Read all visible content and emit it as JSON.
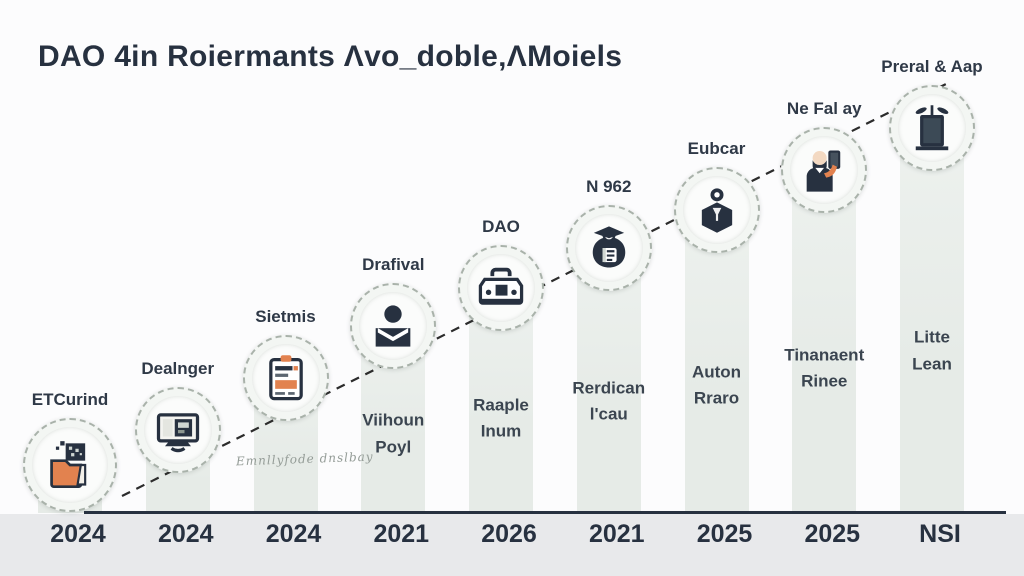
{
  "title": "DAO 4in Roiermants Λvo_doble‚ΛMoiels",
  "annotation": "Emnllyfode dnslbay",
  "colors": {
    "ink": "#273140",
    "accent": "#e2824f",
    "bar": "#e6ebe7",
    "strip": "#e8e9eb",
    "ring": "#a9b2aa",
    "circlefill": "#f3f6f3",
    "bg": "#fcfcfd",
    "trend": "#2c2c2c"
  },
  "milestones": [
    {
      "year": "2024",
      "label": "ETCurind",
      "sublabel_lines": [],
      "icon": "pixel-folder-icon"
    },
    {
      "year": "2024",
      "label": "Dealnger",
      "sublabel_lines": [],
      "icon": "monitor-icon"
    },
    {
      "year": "2024",
      "label": "Sietmis",
      "sublabel_lines": [],
      "icon": "clipboard-icon"
    },
    {
      "year": "2021",
      "label": "Drafival",
      "sublabel_lines": [
        "Viihoun",
        "Poyl"
      ],
      "icon": "person-reading-icon"
    },
    {
      "year": "2026",
      "label": "DAO",
      "sublabel_lines": [
        "Raaple",
        "Inum"
      ],
      "icon": "briefcase-icon"
    },
    {
      "year": "2021",
      "label": "N 962",
      "sublabel_lines": [
        "Rerdican",
        "l'cau"
      ],
      "icon": "graduate-book-icon"
    },
    {
      "year": "2025",
      "label": "Eubcar",
      "sublabel_lines": [
        "Auton",
        "Rraro"
      ],
      "icon": "person-cube-icon"
    },
    {
      "year": "2025",
      "label": "Ne Fal ay",
      "sublabel_lines": [
        "Tinanaent",
        "Rinee"
      ],
      "icon": "person-tablet-icon"
    },
    {
      "year": "NSI",
      "label": "Preral & Aap",
      "sublabel_lines": [
        "Litte",
        "Lean"
      ],
      "icon": "door-sprout-icon"
    }
  ],
  "chart_data": {
    "type": "bar",
    "title": "DAO 4in Roiermants Λvo_doble‚ΛMoiels",
    "categories": [
      "2024",
      "2024",
      "2024",
      "2021",
      "2026",
      "2021",
      "2025",
      "2025",
      "NSI"
    ],
    "values": [
      48,
      83,
      135,
      187,
      225,
      265,
      303,
      343,
      385
    ],
    "values_unit": "estimated_bar_height_px",
    "point_labels": [
      "ETCurind",
      "Dealnger",
      "Sietmis",
      "Drafival",
      "DAO",
      "N 962",
      "Eubcar",
      "Ne Fal ay",
      "Preral & Aap"
    ],
    "xlabel": "",
    "ylabel": "",
    "legend": "none",
    "grid": false,
    "trend_annotation": "ascending dashed line across all milestones"
  }
}
